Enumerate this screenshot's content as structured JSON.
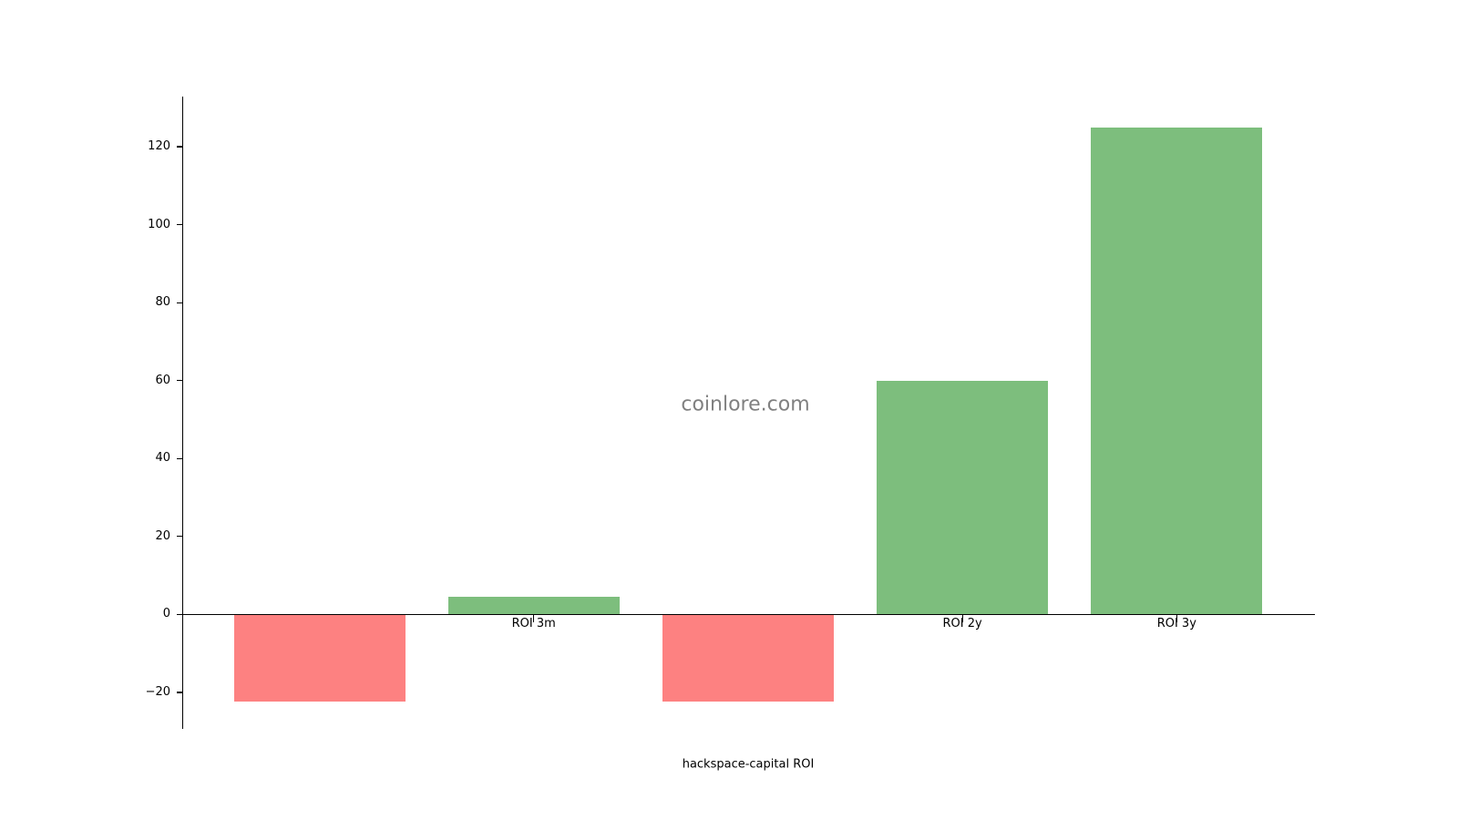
{
  "chart_data": {
    "type": "bar",
    "title": "hackspace-capital ROI",
    "xlabel": "hackspace-capital ROI",
    "ylabel": "",
    "watermark": "coinlore.com",
    "categories": [
      "",
      "ROI 3m",
      "",
      "ROI 2y",
      "ROI 3y"
    ],
    "values": [
      -22,
      4.5,
      -22,
      60,
      125
    ],
    "bar_colors": [
      "#fd8181",
      "#7dbe7d",
      "#fd8181",
      "#7dbe7d",
      "#7dbe7d"
    ],
    "positive_color": "#7dbe7d",
    "negative_color": "#fd8181",
    "yticks": [
      -20,
      0,
      20,
      40,
      60,
      80,
      100,
      120
    ],
    "ytick_labels": [
      "−20",
      "0",
      "20",
      "40",
      "60",
      "80",
      "100",
      "120"
    ],
    "ylim": [
      -29.7,
      132.4
    ],
    "grid": false,
    "legend_position": "none",
    "axis_color": "#000000",
    "tick_label_color": "#000000",
    "watermark_color": "#808080",
    "background_color": "#ffffff"
  }
}
